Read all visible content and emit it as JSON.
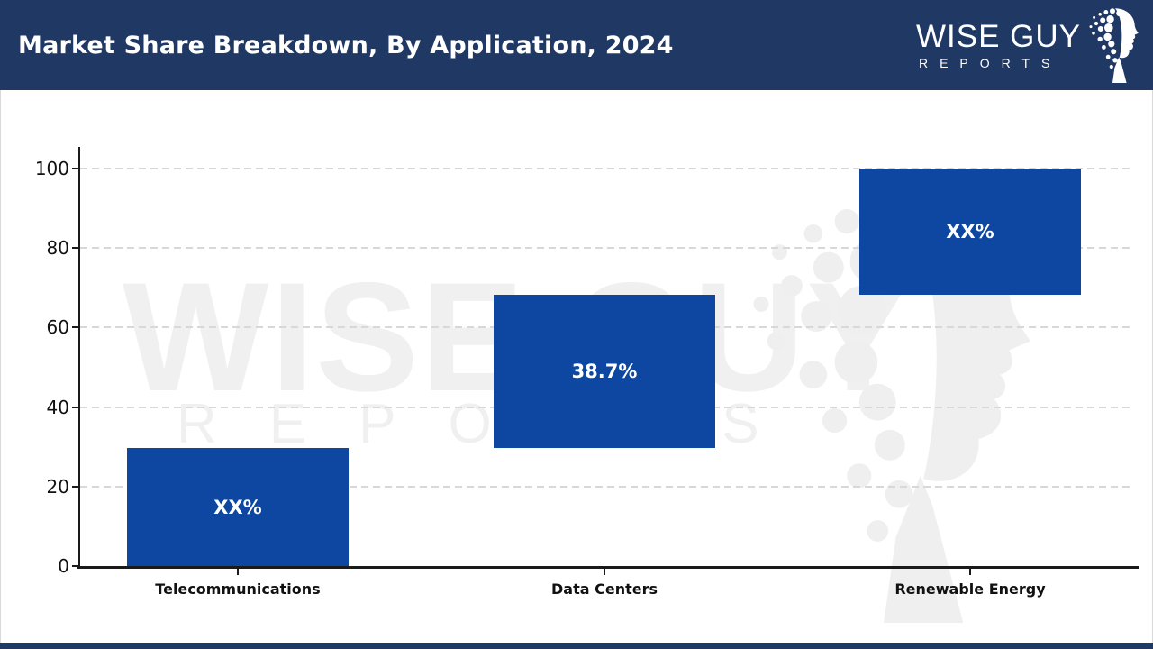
{
  "header": {
    "title": "Market Share Breakdown, By Application, 2024",
    "logo": {
      "name": "WISE GUY",
      "sub": "REPORTS"
    }
  },
  "watermark": {
    "line1": "WISE GUY",
    "line2": "REPORTS"
  },
  "chart_data": {
    "type": "bar",
    "subtype": "waterfall",
    "title": "Market Share Breakdown, By Application, 2024",
    "categories": [
      "Telecommunications",
      "Data Centers",
      "Renewable Energy"
    ],
    "segments": [
      {
        "category": "Telecommunications",
        "start": 0,
        "end": 29.6,
        "value_label": "XX%"
      },
      {
        "category": "Data Centers",
        "start": 29.6,
        "end": 68.3,
        "value_label": "38.7%"
      },
      {
        "category": "Renewable Energy",
        "start": 68.3,
        "end": 100,
        "value_label": "XX%"
      }
    ],
    "xlabel": "",
    "ylabel": "",
    "ylim": [
      0,
      105
    ],
    "yticks": [
      0,
      20,
      40,
      60,
      80,
      100
    ],
    "grid": "horizontal-dashed",
    "legend": "none"
  },
  "colors": {
    "header_bg": "#203864",
    "footer_bg": "#203864",
    "bar": "#0d47a1",
    "grid": "#d8d8d8",
    "axis": "#1a1a1a",
    "bar_label": "#ffffff",
    "watermark": "#f0f0f0"
  }
}
